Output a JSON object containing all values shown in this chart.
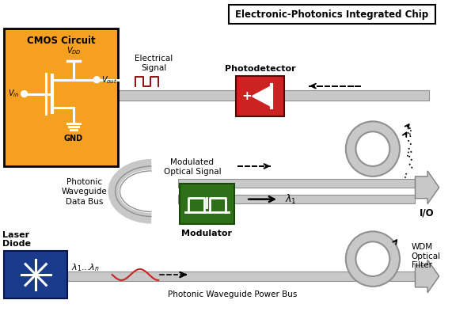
{
  "title": "Electronic-Photonics Integrated Chip",
  "cmos_label": "CMOS Circuit",
  "cmos_color": "#F5A020",
  "photodetector_color": "#CC2222",
  "modulator_color": "#2E7018",
  "laser_color": "#1A3A8C",
  "waveguide_color": "#C8C8C8",
  "waveguide_edge": "#909090",
  "bg_color": "#FFFFFF",
  "labels": {
    "vdd": "$V_{DD}$",
    "vin": "$V_{in}$",
    "vout": "$V_{out}$",
    "gnd": "GND",
    "electrical_signal": "Electrical\nSignal",
    "photodetector": "Photodetector",
    "modulated_optical": "Modulated\nOptical Signal",
    "photonic_wg_data": "Photonic\nWaveguide\nData Bus",
    "lambda1": "$\\lambda_1$",
    "lambda1n": "$\\lambda_1$...$\\lambda_n$",
    "modulator": "Modulator",
    "laser_diode": "Laser\nDiode",
    "io": "I/O",
    "wdm": "WDM\nOptical\nFilter",
    "photonic_wg_power": "Photonic Waveguide Power Bus"
  }
}
